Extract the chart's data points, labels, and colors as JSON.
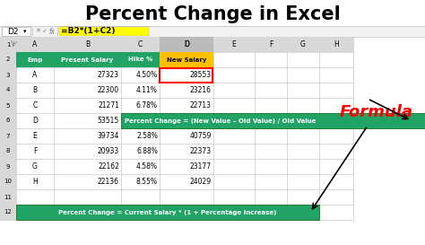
{
  "title": "Percent Change in Excel",
  "formula_bar_cell": "D2",
  "formula_bar_formula": "=B2*(1+C2)",
  "col_headers": [
    "A",
    "B",
    "C",
    "D",
    "E",
    "F",
    "G",
    "H"
  ],
  "table_headers": [
    "Emp",
    "Present Salary",
    "Hike %",
    "New Salary"
  ],
  "data": [
    [
      "A",
      "27323",
      "4.50%",
      "28553"
    ],
    [
      "B",
      "22300",
      "4.11%",
      "23216"
    ],
    [
      "C",
      "21271",
      "6.78%",
      "22713"
    ],
    [
      "D",
      "53515",
      "",
      ""
    ],
    [
      "E",
      "39734",
      "2.58%",
      "40759"
    ],
    [
      "F",
      "20933",
      "6.88%",
      "22373"
    ],
    [
      "G",
      "22162",
      "4.58%",
      "23177"
    ],
    [
      "H",
      "22136",
      "8.55%",
      "24029"
    ]
  ],
  "green_box_row5": "Percent Change = (New Value – Old Value) / Old Value",
  "green_box_row11": "Percent Change = Current Salary * (1 + Percentage Increase)",
  "formula_label": "Formula",
  "header_bg": "#21A366",
  "header_fg": "#FFFFFF",
  "col_d_header_bg": "#FFC000",
  "col_d_header_fg": "#000000",
  "cell_d2_border": "#FF0000",
  "green_annotation_bg": "#21A366",
  "green_annotation_fg": "#FFFFFF",
  "formula_text_color": "#FF0000",
  "bg_color": "#FFFFFF",
  "grid_color": "#BBBBBB",
  "title_color": "#000000",
  "row_header_bg": "#D9D9D9",
  "col_header_bg": "#D9D9D9"
}
